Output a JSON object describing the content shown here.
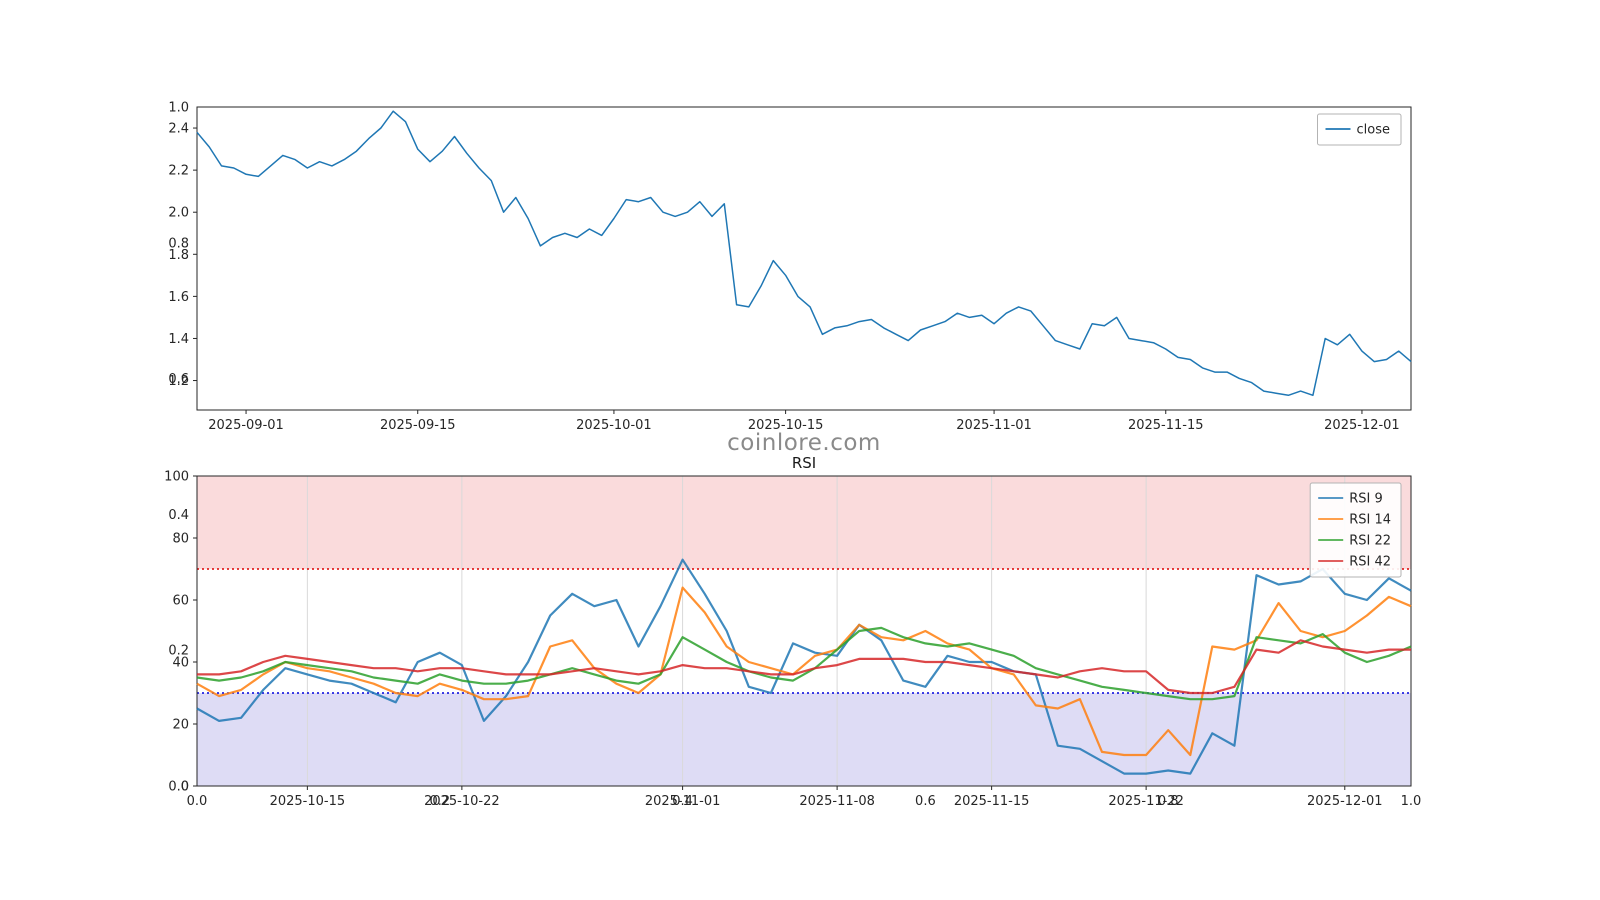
{
  "watermark": "coinlore.com",
  "ghost_axis": {
    "y_labels": [
      "1.0",
      "0.8",
      "0.6",
      "0.4",
      "0.2",
      "0.0"
    ],
    "x_labels": [
      "0.0",
      "0.2",
      "0.4",
      "0.6",
      "0.8",
      "1.0"
    ]
  },
  "chart_data": [
    {
      "type": "line",
      "title": "",
      "x_start": "2025-08-28",
      "x_end": "2025-12-05",
      "x_tick_labels": [
        "2025-09-01",
        "2025-09-15",
        "2025-10-01",
        "2025-10-15",
        "2025-11-01",
        "2025-11-15",
        "2025-12-01"
      ],
      "ylim": [
        1.06,
        2.5
      ],
      "y_ticks": [
        1.2,
        1.4,
        1.6,
        1.8,
        2.0,
        2.2,
        2.4
      ],
      "y_tick_decimals": 1,
      "grid": false,
      "line_width": 1.5,
      "line_opacity": 1,
      "legend_position": "upper right",
      "series": [
        {
          "name": "close",
          "color": "#1f77b4",
          "values": [
            2.38,
            2.31,
            2.22,
            2.21,
            2.18,
            2.17,
            2.22,
            2.27,
            2.25,
            2.21,
            2.24,
            2.22,
            2.25,
            2.29,
            2.35,
            2.4,
            2.48,
            2.43,
            2.3,
            2.24,
            2.29,
            2.36,
            2.28,
            2.21,
            2.15,
            2.0,
            2.07,
            1.97,
            1.84,
            1.88,
            1.9,
            1.88,
            1.92,
            1.89,
            1.97,
            2.06,
            2.05,
            2.07,
            2.0,
            1.98,
            2.0,
            2.05,
            1.98,
            2.04,
            1.56,
            1.55,
            1.65,
            1.77,
            1.7,
            1.6,
            1.55,
            1.42,
            1.45,
            1.46,
            1.48,
            1.49,
            1.45,
            1.42,
            1.39,
            1.44,
            1.46,
            1.48,
            1.52,
            1.5,
            1.51,
            1.47,
            1.52,
            1.55,
            1.53,
            1.46,
            1.39,
            1.37,
            1.35,
            1.47,
            1.46,
            1.5,
            1.4,
            1.39,
            1.38,
            1.35,
            1.31,
            1.3,
            1.26,
            1.24,
            1.24,
            1.21,
            1.19,
            1.15,
            1.14,
            1.13,
            1.15,
            1.13,
            1.4,
            1.37,
            1.42,
            1.34,
            1.29,
            1.3,
            1.34,
            1.29
          ]
        }
      ]
    },
    {
      "type": "line",
      "title": "RSI",
      "x_start": "2025-10-10",
      "x_end": "2025-12-04",
      "x_tick_labels": [
        "2025-10-15",
        "2025-10-22",
        "2025-11-01",
        "2025-11-08",
        "2025-11-15",
        "2025-11-22",
        "2025-12-01"
      ],
      "ylim": [
        0,
        100
      ],
      "y_ticks": [
        0,
        20,
        40,
        60,
        80,
        100
      ],
      "y_tick_decimals": 0,
      "grid": true,
      "line_width": 2.2,
      "line_opacity": 0.85,
      "legend_position": "upper right",
      "bands": [
        {
          "from": 70,
          "to": 100,
          "color": "#fadbdc",
          "meaning": "overbought"
        },
        {
          "from": 0,
          "to": 30,
          "color": "#dedcf5",
          "meaning": "oversold"
        }
      ],
      "hlines": [
        {
          "y": 70,
          "color": "#dd0000",
          "style": "dotted"
        },
        {
          "y": 30,
          "color": "#0000dd",
          "style": "dotted"
        }
      ],
      "series": [
        {
          "name": "RSI 9",
          "color": "#1f77b4",
          "values": [
            25,
            21,
            22,
            31,
            38,
            36,
            34,
            33,
            30,
            27,
            40,
            43,
            39,
            21,
            29,
            40,
            55,
            62,
            58,
            60,
            45,
            58,
            73,
            62,
            50,
            32,
            30,
            46,
            43,
            42,
            52,
            47,
            34,
            32,
            42,
            40,
            40,
            37,
            36,
            13,
            12,
            8,
            4,
            4,
            5,
            4,
            17,
            13,
            68,
            65,
            66,
            70,
            62,
            60,
            67,
            63
          ]
        },
        {
          "name": "RSI 14",
          "color": "#ff7f0e",
          "values": [
            33,
            29,
            31,
            36,
            40,
            38,
            37,
            35,
            33,
            30,
            29,
            33,
            31,
            28,
            28,
            29,
            45,
            47,
            38,
            33,
            30,
            36,
            64,
            56,
            45,
            40,
            38,
            36,
            42,
            44,
            52,
            48,
            47,
            50,
            46,
            44,
            38,
            36,
            26,
            25,
            28,
            11,
            10,
            10,
            18,
            10,
            45,
            44,
            47,
            59,
            50,
            48,
            50,
            55,
            61,
            58
          ]
        },
        {
          "name": "RSI 22",
          "color": "#2ca02c",
          "values": [
            35,
            34,
            35,
            37,
            40,
            39,
            38,
            37,
            35,
            34,
            33,
            36,
            34,
            33,
            33,
            34,
            36,
            38,
            36,
            34,
            33,
            36,
            48,
            44,
            40,
            37,
            35,
            34,
            38,
            44,
            50,
            51,
            48,
            46,
            45,
            46,
            44,
            42,
            38,
            36,
            34,
            32,
            31,
            30,
            29,
            28,
            28,
            29,
            48,
            47,
            46,
            49,
            43,
            40,
            42,
            45
          ]
        },
        {
          "name": "RSI 42",
          "color": "#d62728",
          "values": [
            36,
            36,
            37,
            40,
            42,
            41,
            40,
            39,
            38,
            38,
            37,
            38,
            38,
            37,
            36,
            36,
            36,
            37,
            38,
            37,
            36,
            37,
            39,
            38,
            38,
            37,
            36,
            36,
            38,
            39,
            41,
            41,
            41,
            40,
            40,
            39,
            38,
            37,
            36,
            35,
            37,
            38,
            37,
            37,
            31,
            30,
            30,
            32,
            44,
            43,
            47,
            45,
            44,
            43,
            44,
            44
          ]
        }
      ]
    }
  ]
}
